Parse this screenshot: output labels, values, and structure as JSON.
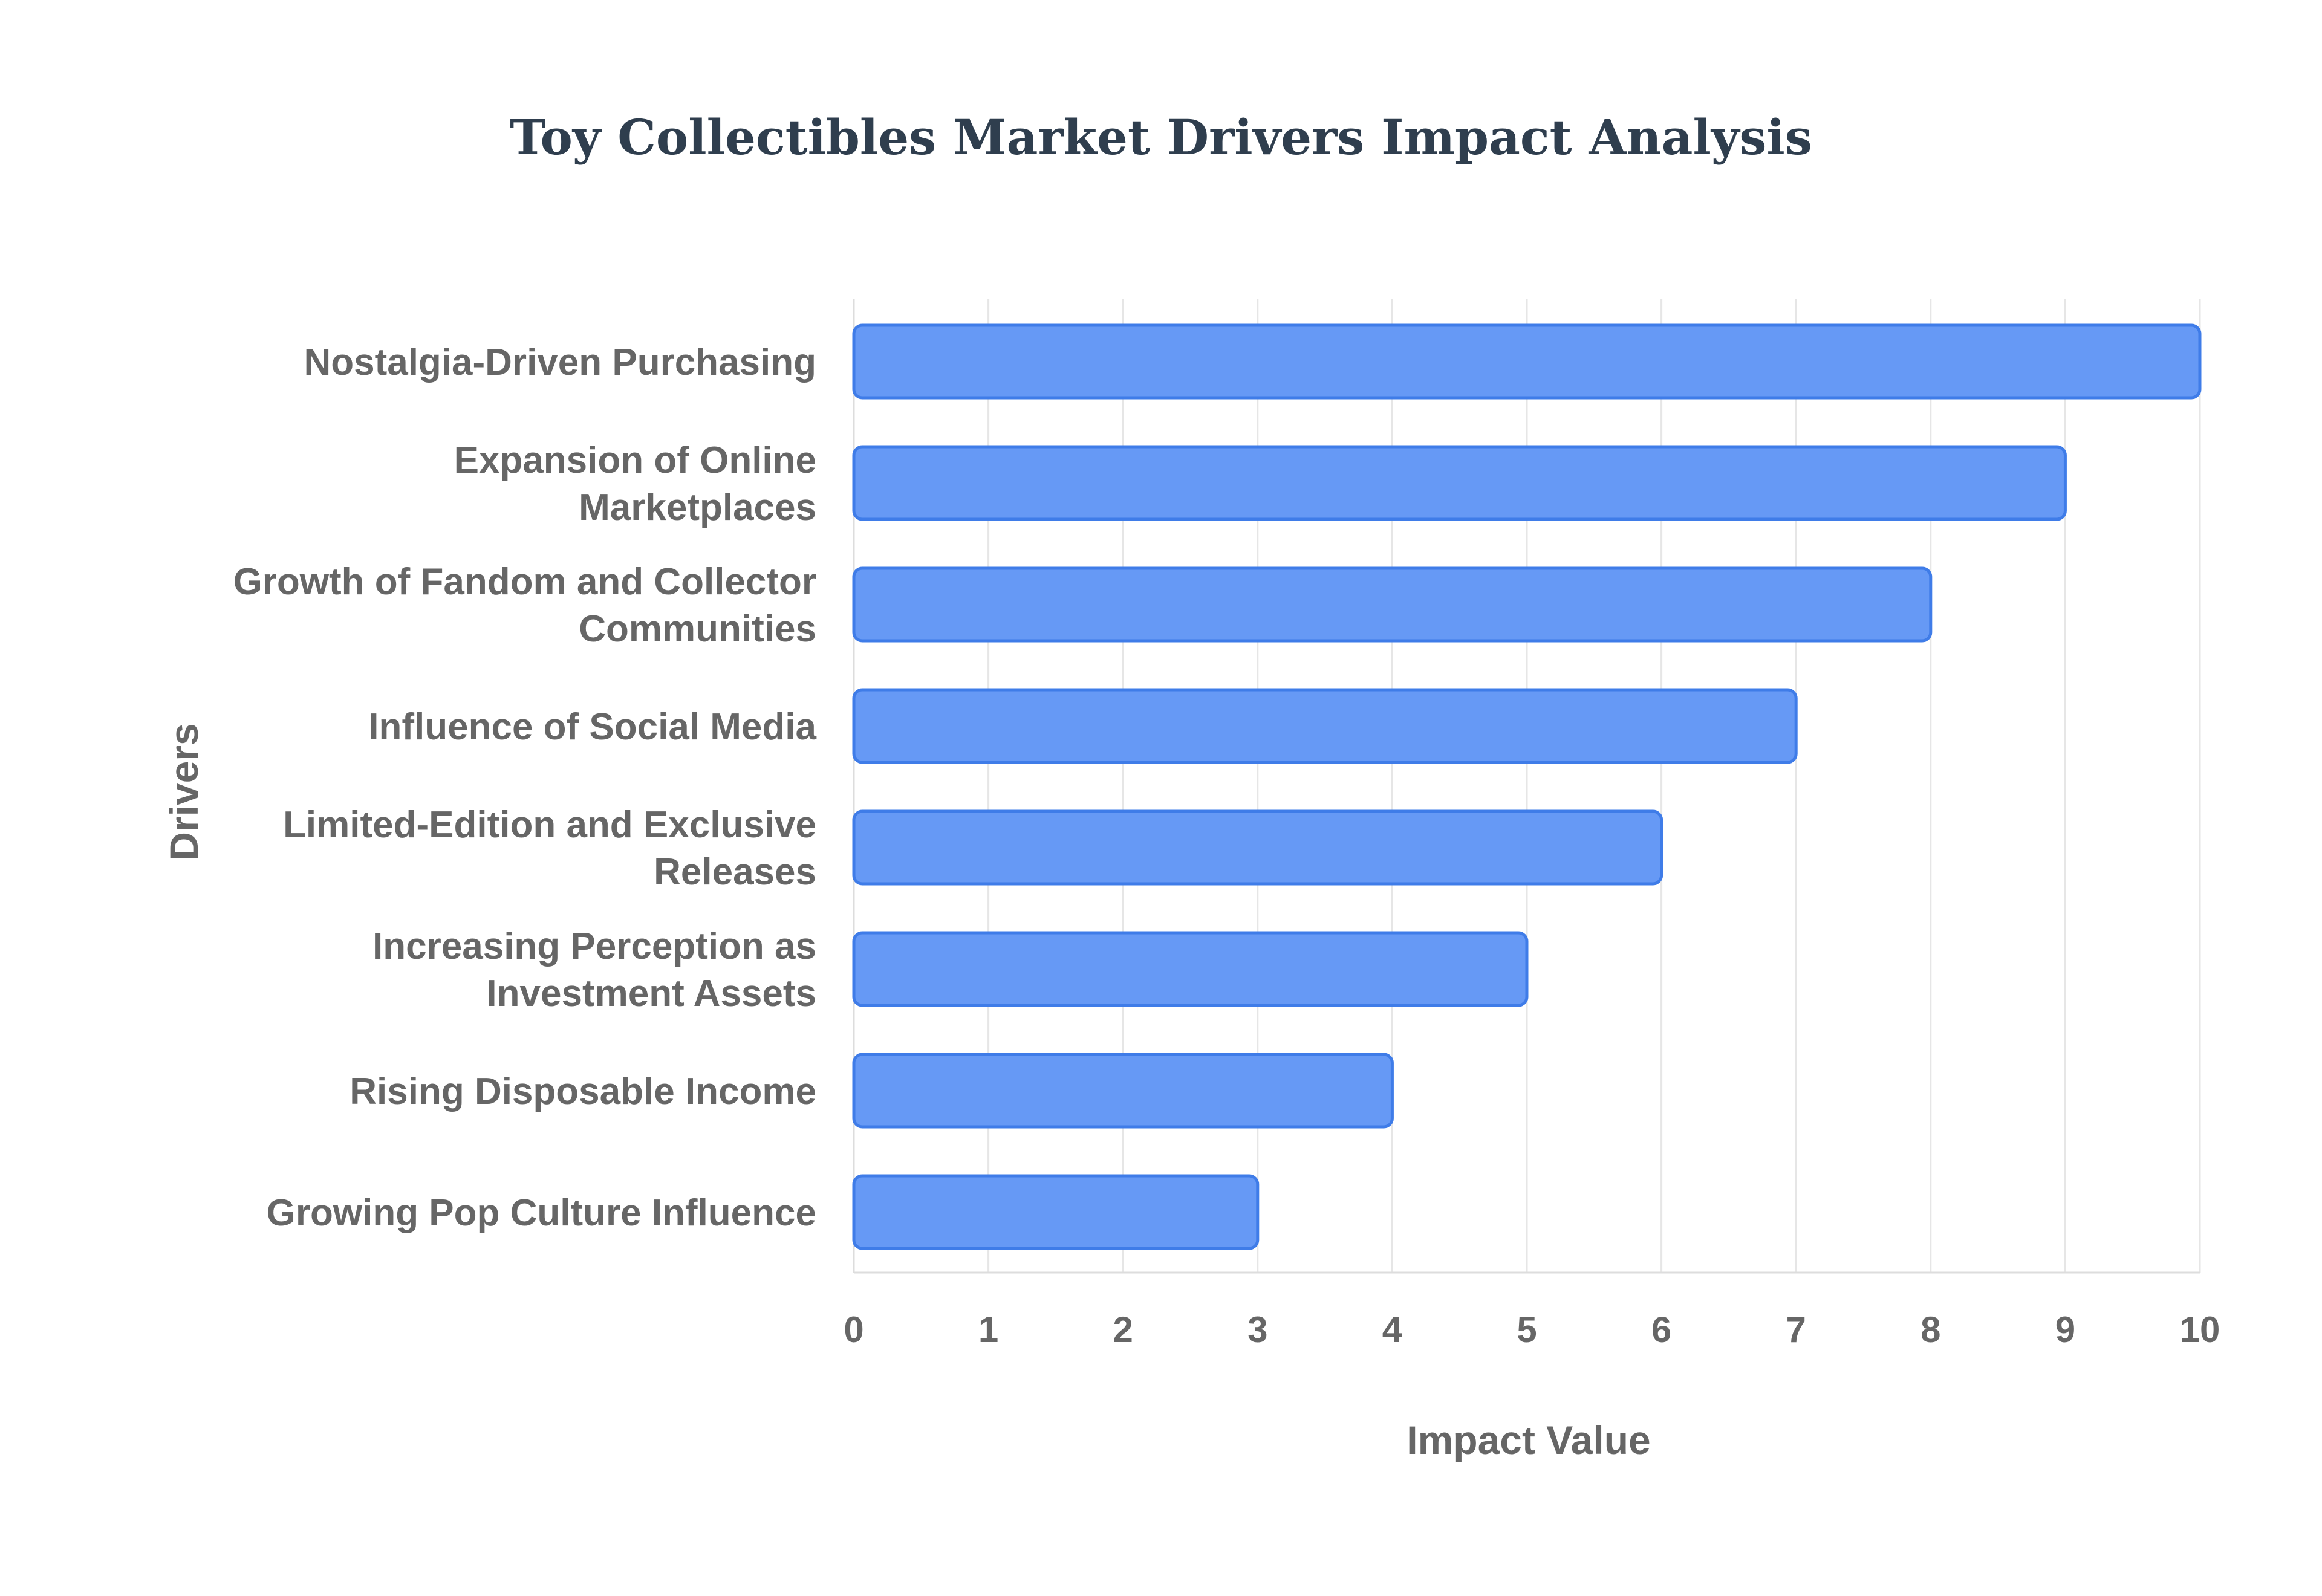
{
  "chart_data": {
    "type": "bar",
    "orientation": "horizontal",
    "title": "Toy Collectibles Market Drivers Impact Analysis",
    "xlabel": "Impact Value",
    "ylabel": "Drivers",
    "categories": [
      "Nostalgia-Driven Purchasing",
      "Expansion of Online Marketplaces",
      "Growth of Fandom and Collector Communities",
      "Influence of Social Media",
      "Limited-Edition and Exclusive Releases",
      "Increasing Perception as Investment Assets",
      "Rising Disposable Income",
      "Growing Pop Culture Influence"
    ],
    "category_label_lines": [
      [
        "Nostalgia-Driven Purchasing"
      ],
      [
        "Expansion of Online",
        "Marketplaces"
      ],
      [
        "Growth of Fandom and Collector",
        "Communities"
      ],
      [
        "Influence of Social Media"
      ],
      [
        "Limited-Edition and Exclusive",
        "Releases"
      ],
      [
        "Increasing Perception as",
        "Investment Assets"
      ],
      [
        "Rising Disposable Income"
      ],
      [
        "Growing Pop Culture Influence"
      ]
    ],
    "values": [
      10,
      9,
      8,
      7,
      6,
      5,
      4,
      3
    ],
    "xlim": [
      0,
      10
    ],
    "xticks": [
      "0",
      "1",
      "2",
      "3",
      "4",
      "5",
      "6",
      "7",
      "8",
      "9",
      "10"
    ],
    "grid": true,
    "legend": false,
    "bar_color": "#6699f5",
    "bar_border_color": "#3f7ce8",
    "text_color": "#666666",
    "title_color": "#2f3e4e"
  }
}
